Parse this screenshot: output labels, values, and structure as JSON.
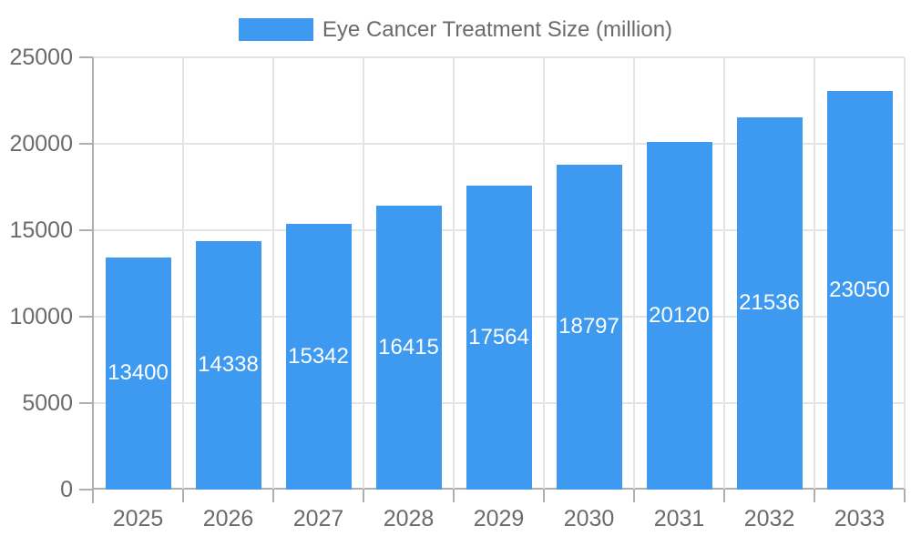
{
  "chart_data": {
    "type": "bar",
    "title": "",
    "legend": "Eye Cancer Treatment Size (million)",
    "legend_position": "top",
    "categories": [
      "2025",
      "2026",
      "2027",
      "2028",
      "2029",
      "2030",
      "2031",
      "2032",
      "2033"
    ],
    "values": [
      13400,
      14338,
      15342,
      16415,
      17564,
      18797,
      20120,
      21536,
      23050
    ],
    "value_labels": [
      "13400",
      "14338",
      "15342",
      "16415",
      "17564",
      "18797",
      "20120",
      "21536",
      "23050"
    ],
    "xlabel": "",
    "ylabel": "",
    "ylim": [
      0,
      25000
    ],
    "yticks": [
      0,
      5000,
      10000,
      15000,
      20000,
      25000
    ],
    "ytick_labels": [
      "0",
      "5000",
      "10000",
      "15000",
      "20000",
      "25000"
    ],
    "grid": true,
    "colors": {
      "bar": "#3D9AF0",
      "axis_text": "#6B6B6B",
      "legend_text": "#6B6B6B",
      "grid_line": "#E4E4E4",
      "axis_line": "#AFAFAF",
      "value_label": "#FFFFFF",
      "background": "#FFFFFF"
    }
  }
}
